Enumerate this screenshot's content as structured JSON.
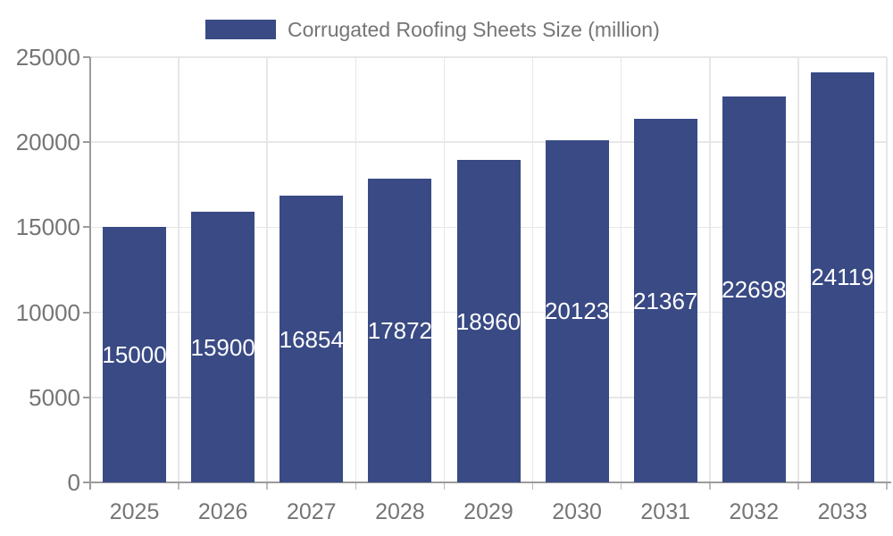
{
  "chart_data": {
    "type": "bar",
    "title": "Corrugated Roofing Sheets Size (million)",
    "categories": [
      "2025",
      "2026",
      "2027",
      "2028",
      "2029",
      "2030",
      "2031",
      "2032",
      "2033"
    ],
    "values": [
      15000,
      15900,
      16854,
      17872,
      18960,
      20123,
      21367,
      22698,
      24119
    ],
    "xlabel": "",
    "ylabel": "",
    "ylim": [
      0,
      25000
    ],
    "yticks": [
      0,
      5000,
      10000,
      15000,
      20000,
      25000
    ],
    "grid": true,
    "legend_position": "top-center",
    "colors": {
      "bar": "#394A84",
      "grid": "#E7E7E7",
      "axis": "#9B9B9B",
      "tick": "#BBBBBB",
      "tick_label": "#757575",
      "legend_text": "#757575",
      "value_label": "#FFFFFF",
      "background": "#FFFFFF"
    }
  }
}
